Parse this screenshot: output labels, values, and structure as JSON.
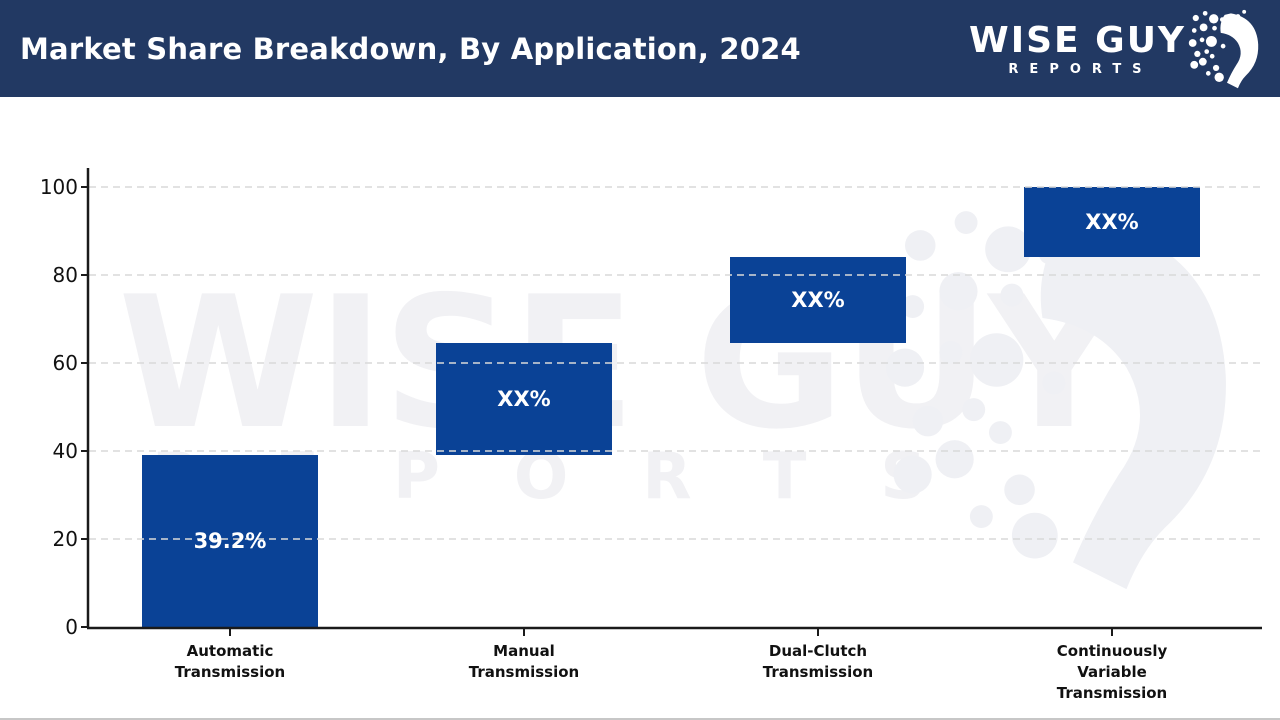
{
  "header": {
    "title": "Market Share Breakdown, By Application, 2024"
  },
  "logo": {
    "wordmark": "WISE GUY",
    "subtext": "REPORTS"
  },
  "watermark": {
    "wordmark": "WISE GUY",
    "subtext": "REPORTS"
  },
  "chart_data": {
    "type": "bar",
    "subtype": "waterfall",
    "title": "Market Share Breakdown, By Application, 2024",
    "categories": [
      "Automatic\nTransmission",
      "Manual\nTransmission",
      "Dual-Clutch\nTransmission",
      "Continuously\nVariable\nTransmission"
    ],
    "segments": [
      {
        "category": "Automatic Transmission",
        "start": 0,
        "end": 39.2,
        "label": "39.2%"
      },
      {
        "category": "Manual Transmission",
        "start": 39.2,
        "end": 64.5,
        "label": "XX%"
      },
      {
        "category": "Dual-Clutch Transmission",
        "start": 64.5,
        "end": 84,
        "label": "XX%"
      },
      {
        "category": "Continuously Variable Transmission",
        "start": 84,
        "end": 100,
        "label": "XX%"
      }
    ],
    "yticks": [
      0,
      20,
      40,
      60,
      80,
      100
    ],
    "ylim": [
      0,
      100
    ],
    "xlabel": "",
    "ylabel": "",
    "grid": "horizontal-dashed",
    "legend": "none",
    "bar_color": "#0a4296",
    "bar_label_color": "#ffffff",
    "axis_color": "#1a1a1a",
    "gridline_color": "#d9d9d9"
  },
  "colors": {
    "header_bg": "#223963",
    "header_text": "#ffffff",
    "watermark": "#f1f1f4",
    "bottom_rule": "#c7c7c7"
  }
}
